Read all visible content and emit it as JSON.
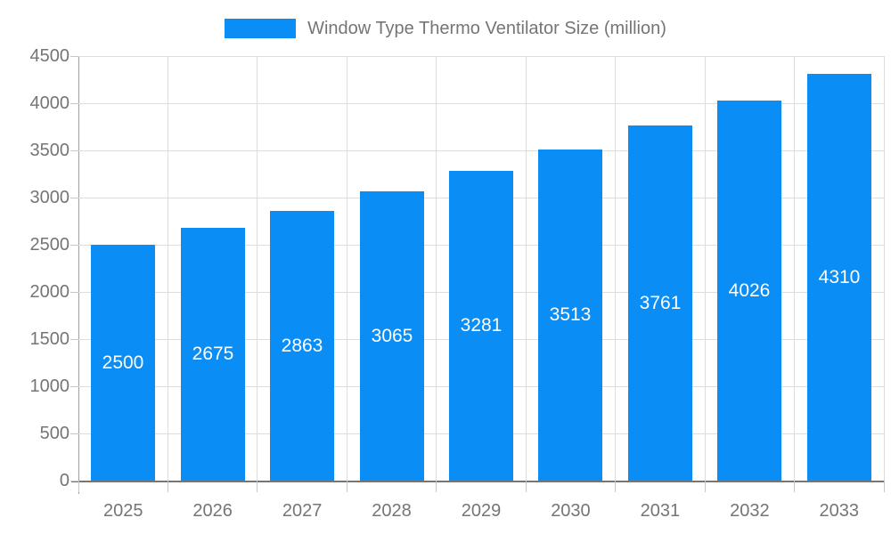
{
  "chart_data": {
    "type": "bar",
    "title": "Window Type Thermo Ventilator Size (million)",
    "legend_position": "top",
    "categories": [
      "2025",
      "2026",
      "2027",
      "2028",
      "2029",
      "2030",
      "2031",
      "2032",
      "2033"
    ],
    "values": [
      2500,
      2675,
      2863,
      3065,
      3281,
      3513,
      3761,
      4026,
      4310
    ],
    "value_labels_visible": true,
    "xlabel": "",
    "ylabel": "",
    "ylim": [
      0,
      4500
    ],
    "ytick_step": 500,
    "yticks": [
      0,
      500,
      1000,
      1500,
      2000,
      2500,
      3000,
      3500,
      4000,
      4500
    ],
    "grid": true,
    "colors": {
      "bar": "#0a8df5",
      "bar_label": "#ffffff",
      "axis_text": "#757575",
      "grid": "#dddddd",
      "tick": "#c6c6c6",
      "y_axis_line": "#9e9e9e",
      "x_axis_line": "#757575",
      "background": "#ffffff"
    }
  }
}
